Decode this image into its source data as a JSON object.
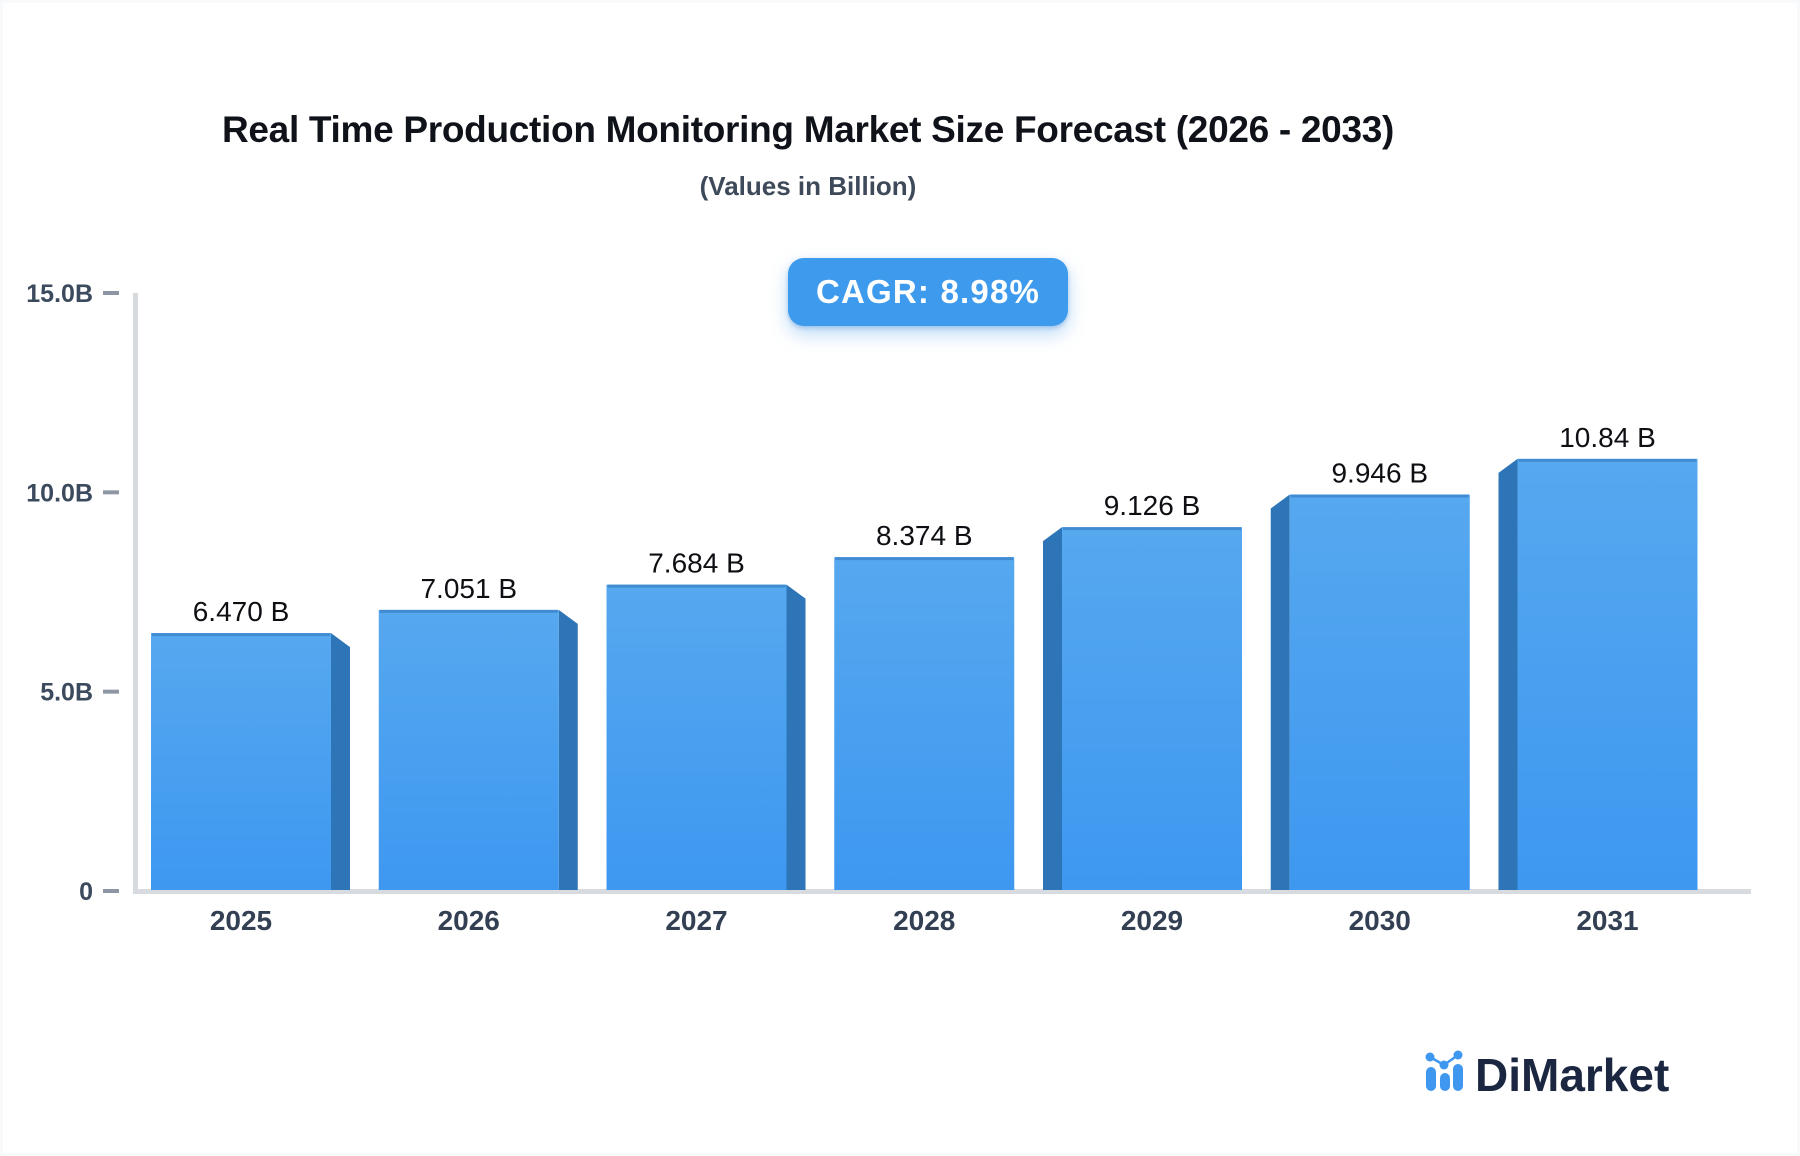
{
  "header": {
    "title": "Real Time Production Monitoring Market Size Forecast (2026 - 2033)",
    "subtitle": "(Values in Billion)"
  },
  "badge": {
    "label": "CAGR: 8.98%"
  },
  "chart_data": {
    "type": "bar",
    "title": "Real Time Production Monitoring Market Size Forecast (2026 - 2033)",
    "subtitle": "(Values in Billion)",
    "categories": [
      "2025",
      "2026",
      "2027",
      "2028",
      "2029",
      "2030",
      "2031"
    ],
    "values": [
      6.47,
      7.051,
      7.684,
      8.374,
      9.126,
      9.946,
      10.84
    ],
    "value_labels": [
      "6.470 B",
      "7.051 B",
      "7.684 B",
      "8.374 B",
      "9.126 B",
      "9.946 B",
      "10.84 B"
    ],
    "xlabel": "",
    "ylabel": "",
    "ylim": [
      0,
      15
    ],
    "yticks": [
      {
        "value": 0,
        "label": "0"
      },
      {
        "value": 5,
        "label": "5.0B"
      },
      {
        "value": 10,
        "label": "10.0B"
      },
      {
        "value": 15,
        "label": "15.0B"
      }
    ],
    "grid": false,
    "legend": false
  },
  "logo": {
    "text": "DiMarket",
    "icon": "bar-chart-sparkline-icon"
  },
  "colors": {
    "badge_bg": "#3d9aec",
    "bar_face_top": "#56a8ef",
    "bar_face_bottom": "#3e98f0",
    "bar_top_edge": "#3d85cd",
    "bar_side": "#2e75b7",
    "axis_line": "#d7dbe0",
    "tick_dash": "#8d97a3",
    "tick_label": "#3c4a5e",
    "year_label": "#333f52",
    "value_label": "#0d0f13",
    "logo_blue": "#3f97f0",
    "logo_text": "#1b2740"
  }
}
